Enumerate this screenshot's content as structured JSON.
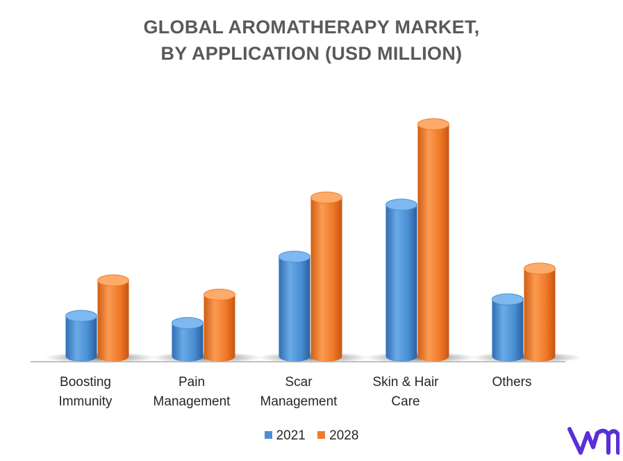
{
  "title": {
    "line1": "GLOBAL AROMATHERAPY MARKET,",
    "line2": "BY APPLICATION (USD MILLION)"
  },
  "legend": {
    "items": [
      {
        "label": "2021",
        "color": "#4a8fd4"
      },
      {
        "label": "2028",
        "color": "#f07a28"
      }
    ]
  },
  "chart_data": {
    "type": "bar",
    "title": "GLOBAL AROMATHERAPY MARKET, BY APPLICATION (USD MILLION)",
    "categories": [
      "Boosting Immunity",
      "Pain Management",
      "Scar Management",
      "Skin & Hair Care",
      "Others"
    ],
    "category_labels": [
      [
        "Boosting",
        "Immunity"
      ],
      [
        "Pain",
        "Management"
      ],
      [
        "Scar",
        "Management"
      ],
      [
        "Skin & Hair",
        "Care"
      ],
      [
        "Others"
      ]
    ],
    "series": [
      {
        "name": "2021",
        "values": [
          17,
          14,
          42,
          64,
          24
        ],
        "color": "#4a8fd4"
      },
      {
        "name": "2028",
        "values": [
          32,
          26,
          67,
          98,
          37
        ],
        "color": "#f07a28"
      }
    ],
    "ylim": [
      0,
      100
    ],
    "grid": false,
    "legend_position": "bottom",
    "bar_style": "3d-cylinder"
  },
  "logo": {
    "icon": "vmr-logo-icon",
    "color": "#5a2fd8"
  }
}
